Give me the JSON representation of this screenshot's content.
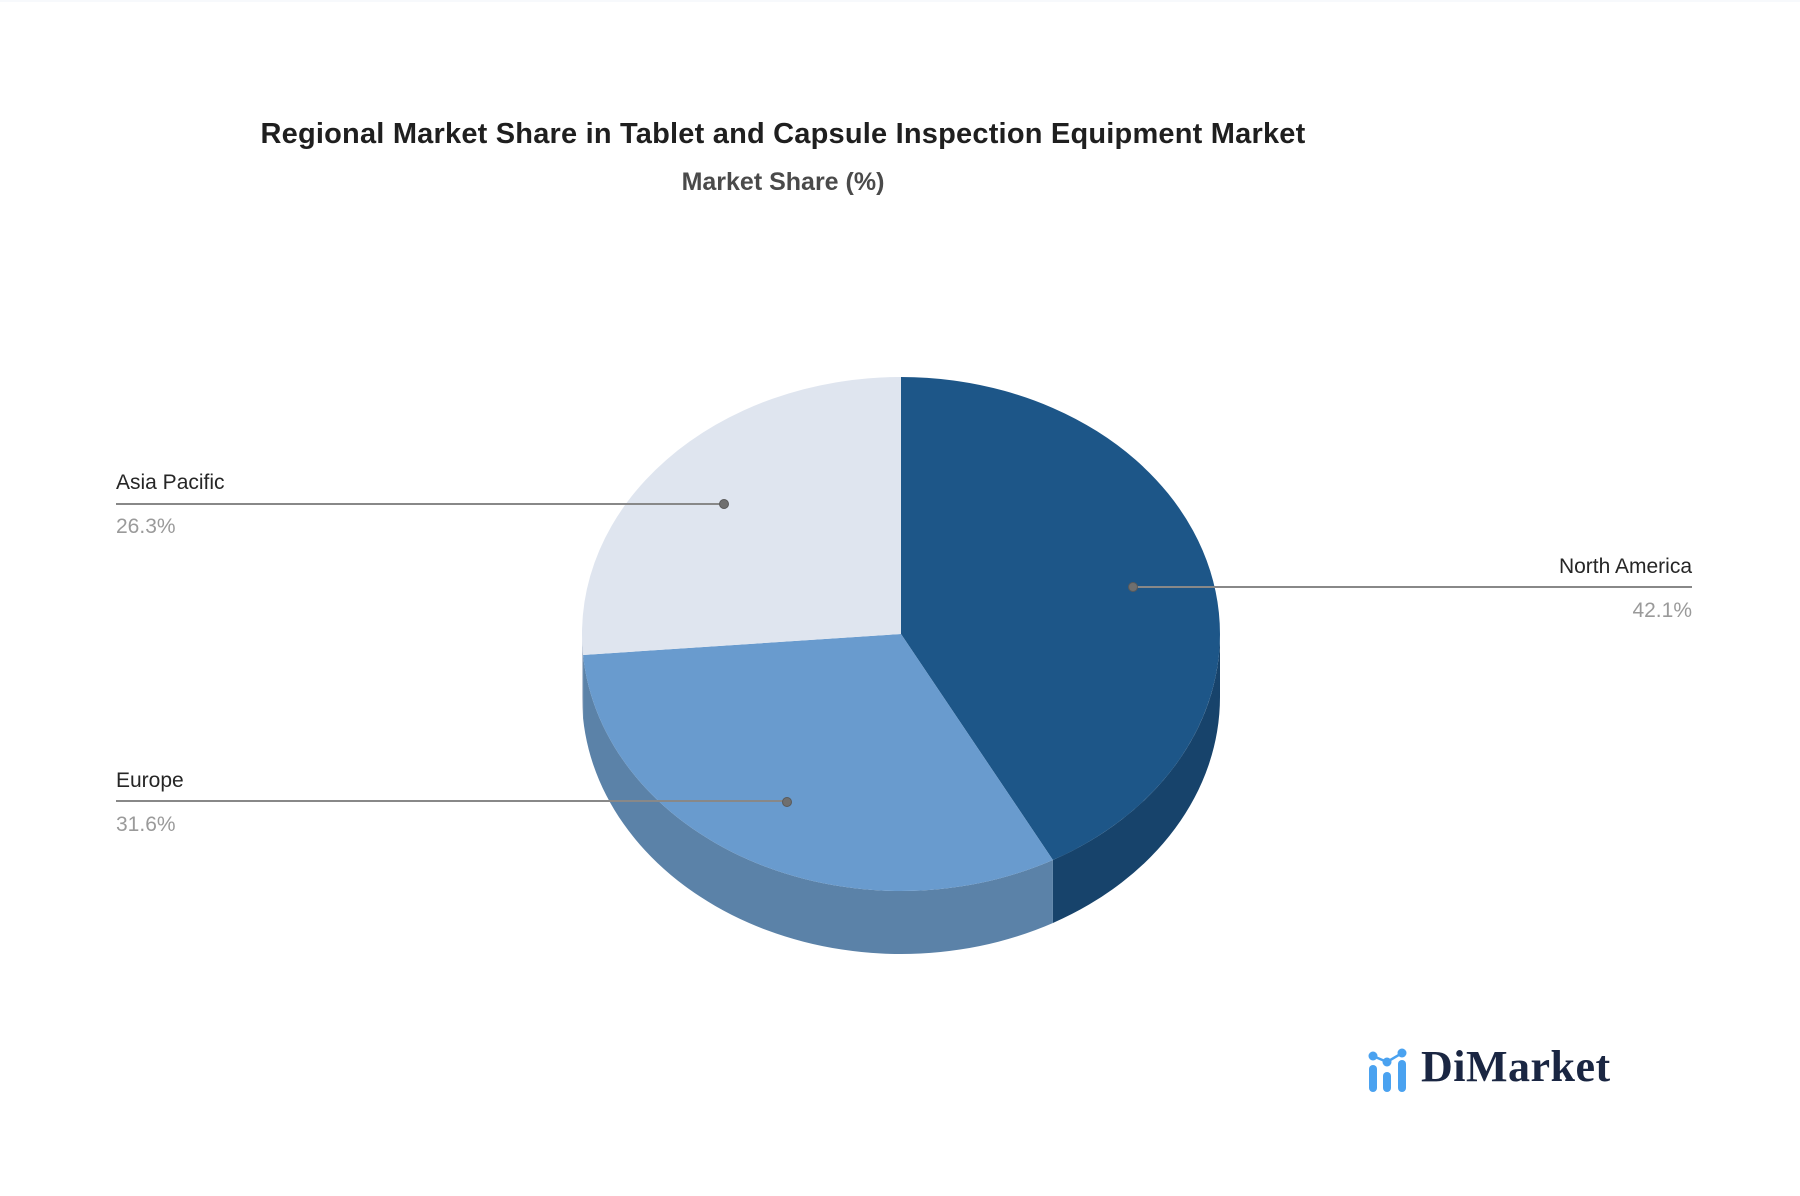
{
  "chart_data": {
    "type": "pie",
    "title": "Regional Market Share in Tablet and Capsule Inspection Equipment Market",
    "subtitle": "Market Share (%)",
    "unit": "%",
    "style": "3d-pie, starts at 12 o'clock, clockwise",
    "legend_position": "none (leader-line labels)",
    "slices": [
      {
        "label": "North America",
        "value": 42.1,
        "display": "42.1%",
        "color": "#1D5688",
        "side_color": "#17436B"
      },
      {
        "label": "Europe",
        "value": 31.6,
        "display": "31.6%",
        "color": "#699BCE",
        "side_color": "#5B82A8"
      },
      {
        "label": "Asia Pacific",
        "value": 26.3,
        "display": "26.3%",
        "color": "#DFE5EF",
        "side_color": "#B6C1D2"
      }
    ]
  },
  "logo": {
    "text": "DiMarket",
    "icon": "bar-line-chart-icon",
    "icon_color": "#4AA2F0",
    "text_color": "#1A2642"
  }
}
